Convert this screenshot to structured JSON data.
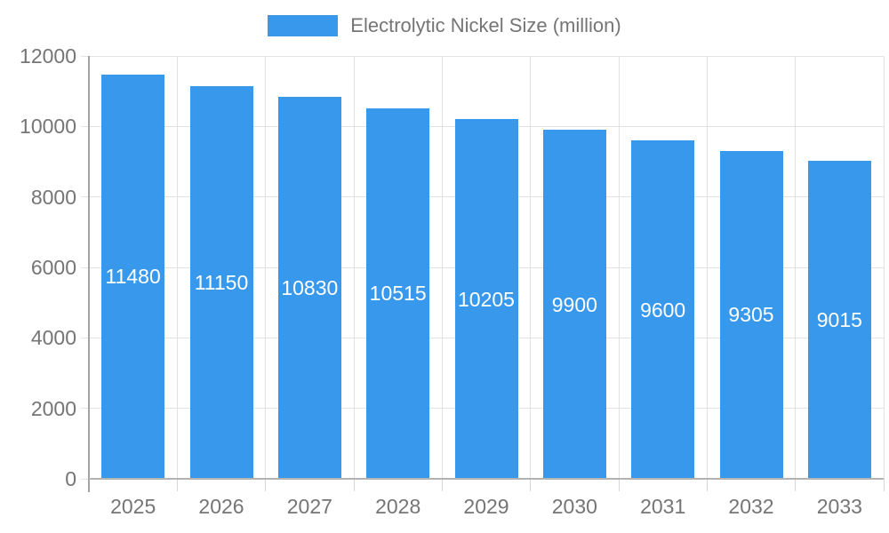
{
  "legend": {
    "label": "Electrolytic Nickel Size (million)",
    "swatch_color": "#3899EC"
  },
  "chart_data": {
    "type": "bar",
    "title": "Electrolytic Nickel Size (million)",
    "categories": [
      "2025",
      "2026",
      "2027",
      "2028",
      "2029",
      "2030",
      "2031",
      "2032",
      "2033"
    ],
    "values": [
      11480,
      11150,
      10830,
      10515,
      10205,
      9900,
      9600,
      9305,
      9015
    ],
    "series": [
      {
        "name": "Electrolytic Nickel Size (million)",
        "values": [
          11480,
          11150,
          10830,
          10515,
          10205,
          9900,
          9600,
          9305,
          9015
        ]
      }
    ],
    "xlabel": "",
    "ylabel": "",
    "ylim": [
      0,
      12000
    ],
    "yticks": [
      0,
      2000,
      4000,
      6000,
      8000,
      10000,
      12000
    ],
    "grid": true,
    "legend_position": "top",
    "data_labels_position": "inside-center",
    "colors": {
      "bar": "#3899EC",
      "bar_label": "#ffffff",
      "axis_text": "#757575",
      "gridline": "#e2e2e2",
      "axis_line": "#b3b3b3"
    }
  }
}
